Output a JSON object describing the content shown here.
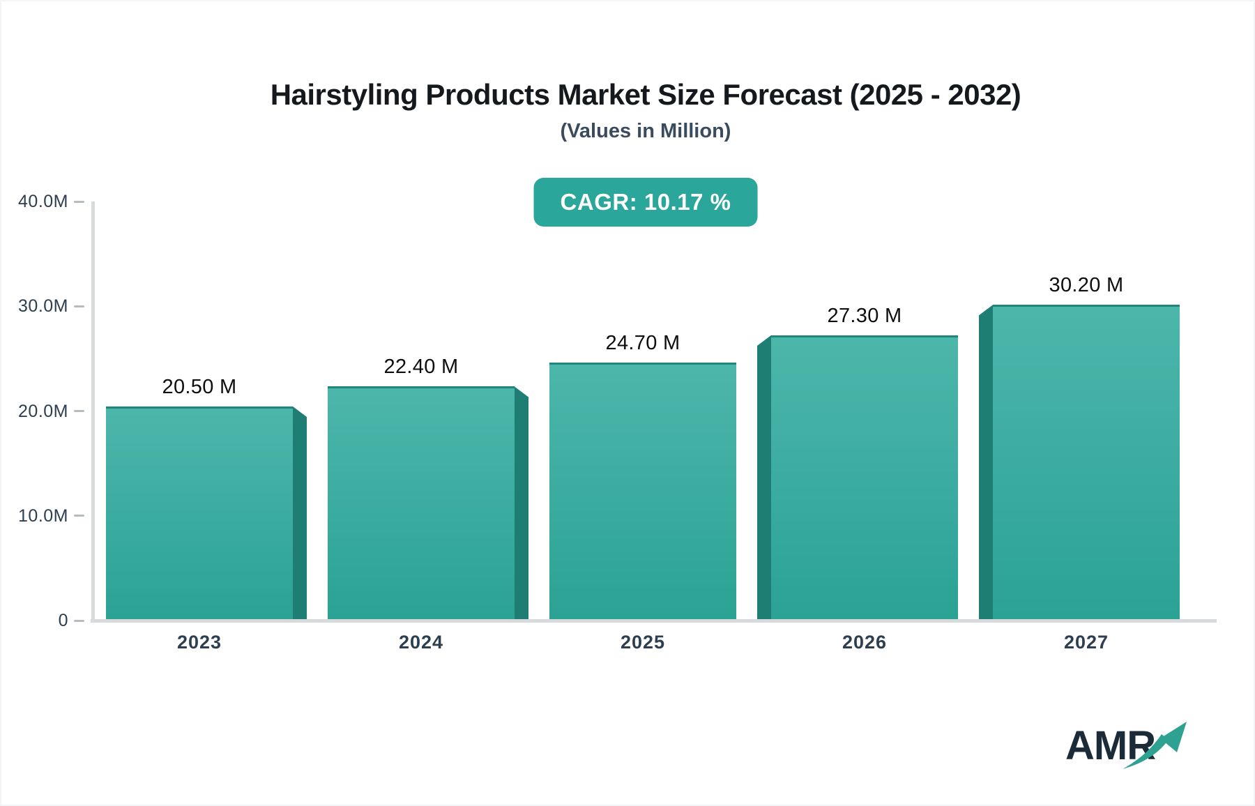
{
  "header": {
    "title": "Hairstyling Products Market Size Forecast (2025 - 2032)",
    "subtitle": "(Values in Million)"
  },
  "badge": {
    "label": "CAGR: 10.17 %"
  },
  "chart_data": {
    "type": "bar",
    "title": "Hairstyling Products Market Size Forecast (2025 - 2032)",
    "subtitle": "(Values in Million)",
    "unit": "Million",
    "cagr_percent": 10.17,
    "categories": [
      "2023",
      "2024",
      "2025",
      "2026",
      "2027"
    ],
    "values": [
      20.5,
      22.4,
      24.7,
      27.3,
      30.2
    ],
    "value_labels": [
      "20.50 M",
      "22.40 M",
      "24.70 M",
      "27.30 M",
      "30.20 M"
    ],
    "ylim": [
      0,
      40
    ],
    "y_ticks": [
      {
        "value": 40,
        "label": "40.0M"
      },
      {
        "value": 30,
        "label": "30.0M"
      },
      {
        "value": 20,
        "label": "20.0M"
      },
      {
        "value": 10,
        "label": "10.0M"
      },
      {
        "value": 0,
        "label": "0"
      }
    ],
    "grid": false,
    "legend": null,
    "bar_style": "3d-gradient-teal"
  },
  "logo": {
    "text": "AMR",
    "icon": "growth-arrow-icon"
  },
  "colors": {
    "accent_teal": "#2aa79a",
    "bar_top": "#4db6ab",
    "bar_bottom": "#2aa294",
    "bar_side": "#1f7e73",
    "badge_bg": "#2aa79a",
    "badge_text": "#ffffff",
    "title_text": "#15191e",
    "subtitle_text": "#3a4b5f",
    "axis_line": "#d7dadd",
    "tick_mark": "#b4bcc2",
    "axis_label": "#2d3e50",
    "value_label": "#0e0e0e",
    "logo_text": "#1c2b38",
    "logo_arrow": "#2fa192",
    "background": "#ffffff"
  }
}
